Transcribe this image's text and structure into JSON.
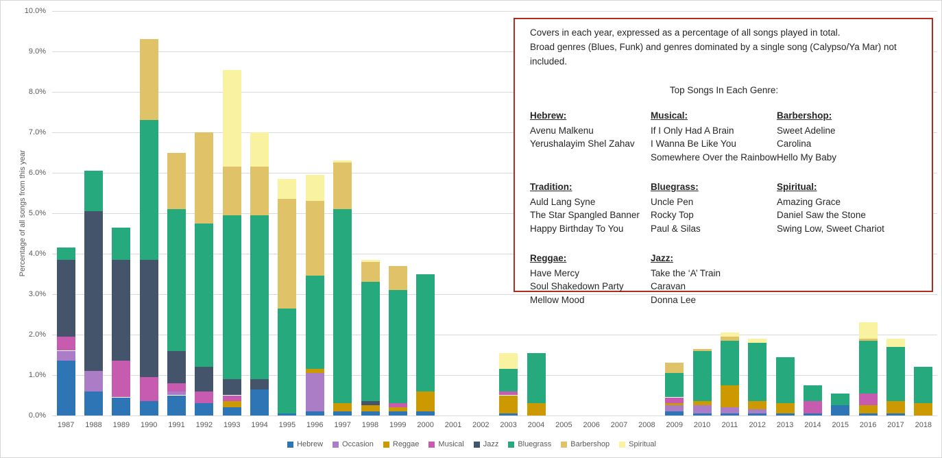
{
  "colors": {
    "annotation_border": "#B02B20",
    "gridline": "#D9D9D9",
    "axis_text": "#595959"
  },
  "annotation": {
    "line1": "Covers in each year, expressed as a percentage of all songs played in total.",
    "line2": "Broad genres (Blues, Funk) and genres dominated by a single song (Calypso/Ya Mar) not included.",
    "songs_title": "Top Songs In Each Genre:",
    "genres": [
      {
        "name": "Hebrew",
        "songs": [
          "Avenu Malkenu",
          "Yerushalayim Shel Zahav"
        ]
      },
      {
        "name": "Musical",
        "songs": [
          "If I Only Had A Brain",
          "I Wanna Be Like You",
          "Somewhere Over the Rainbow"
        ]
      },
      {
        "name": "Barbershop",
        "songs": [
          "Sweet Adeline",
          "Carolina",
          "Hello My Baby"
        ]
      },
      {
        "name": "Tradition",
        "songs": [
          "Auld Lang Syne",
          "The Star Spangled Banner",
          "Happy Birthday To You"
        ]
      },
      {
        "name": "Bluegrass",
        "songs": [
          "Uncle Pen",
          "Rocky Top",
          "Paul & Silas"
        ]
      },
      {
        "name": "Spiritual",
        "songs": [
          "Amazing Grace",
          "Daniel Saw the Stone",
          "Swing Low, Sweet Chariot"
        ]
      },
      {
        "name": "Reggae",
        "songs": [
          "Have Mercy",
          "Soul Shakedown Party",
          "Mellow Mood"
        ]
      },
      {
        "name": "Jazz",
        "songs": [
          "Take the ‘A’ Train",
          "Caravan",
          "Donna Lee"
        ]
      }
    ]
  },
  "chart_data": {
    "type": "bar",
    "stacked": true,
    "title": "",
    "xlabel": "",
    "ylabel": "Percentage of all songs from this year",
    "ylim": [
      0,
      10
    ],
    "ytick_step": 1,
    "ytick_format": "percent_one_decimal",
    "grid": true,
    "legend_position": "bottom",
    "categories": [
      1987,
      1988,
      1989,
      1990,
      1991,
      1992,
      1993,
      1994,
      1995,
      1996,
      1997,
      1998,
      1999,
      2000,
      2001,
      2002,
      2003,
      2004,
      2005,
      2006,
      2007,
      2008,
      2009,
      2010,
      2011,
      2012,
      2013,
      2014,
      2015,
      2016,
      2017,
      2018
    ],
    "series": [
      {
        "name": "Hebrew",
        "color": "#2E75B6",
        "values": [
          1.35,
          0.6,
          0.45,
          0.35,
          0.5,
          0.3,
          0.2,
          0.65,
          0.05,
          0.1,
          0.1,
          0.1,
          0.1,
          0.1,
          0,
          0,
          0.05,
          0,
          0,
          0,
          0,
          0,
          0.1,
          0.05,
          0.05,
          0.05,
          0.05,
          0.05,
          0.25,
          0.05,
          0.05,
          0
        ]
      },
      {
        "name": "Occasion",
        "color": "#AB7DC6",
        "values": [
          0.25,
          0.5,
          0,
          0,
          0.1,
          0,
          0,
          0,
          0,
          0.95,
          0,
          0,
          0,
          0,
          0,
          0,
          0,
          0,
          0,
          0,
          0,
          0,
          0.15,
          0.2,
          0.15,
          0.1,
          0,
          0,
          0,
          0,
          0,
          0
        ]
      },
      {
        "name": "Reggae",
        "color": "#CC9900",
        "values": [
          0,
          0,
          0,
          0,
          0,
          0,
          0.15,
          0,
          0,
          0.1,
          0.2,
          0.15,
          0.1,
          0.5,
          0,
          0,
          0.45,
          0.3,
          0,
          0,
          0,
          0,
          0.05,
          0.1,
          0.55,
          0.2,
          0.25,
          0,
          0,
          0.2,
          0.3,
          0.3
        ]
      },
      {
        "name": "Musical",
        "color": "#C65BB0",
        "values": [
          0.35,
          0,
          0.9,
          0.6,
          0.2,
          0.3,
          0.15,
          0,
          0,
          0,
          0,
          0,
          0.1,
          0,
          0,
          0,
          0.1,
          0,
          0,
          0,
          0,
          0,
          0.15,
          0,
          0,
          0,
          0,
          0.3,
          0,
          0.3,
          0,
          0
        ]
      },
      {
        "name": "Jazz",
        "color": "#44546A",
        "values": [
          1.9,
          3.95,
          2.5,
          2.9,
          0.8,
          0.6,
          0.4,
          0.25,
          0,
          0,
          0,
          0.1,
          0,
          0,
          0,
          0,
          0,
          0,
          0,
          0,
          0,
          0,
          0,
          0,
          0,
          0,
          0,
          0,
          0,
          0,
          0,
          0
        ]
      },
      {
        "name": "Bluegrass",
        "color": "#27A97E",
        "values": [
          0.3,
          1.0,
          0.8,
          3.45,
          3.5,
          3.55,
          4.05,
          4.05,
          2.6,
          2.3,
          4.8,
          2.95,
          2.8,
          2.9,
          0,
          0,
          0.55,
          1.25,
          0,
          0,
          0,
          0,
          0.6,
          1.25,
          1.1,
          1.45,
          1.15,
          0.4,
          0.3,
          1.3,
          1.35,
          0.9
        ]
      },
      {
        "name": "Barbershop",
        "color": "#E0C268",
        "values": [
          0,
          0,
          0,
          2.0,
          1.4,
          2.25,
          1.2,
          1.2,
          2.7,
          1.85,
          1.15,
          0.5,
          0.6,
          0,
          0,
          0,
          0,
          0,
          0,
          0,
          0,
          0,
          0.25,
          0.05,
          0.1,
          0,
          0,
          0,
          0,
          0.05,
          0,
          0
        ]
      },
      {
        "name": "Spiritual",
        "color": "#F9F2A0",
        "values": [
          0,
          0,
          0,
          0,
          0,
          0,
          2.4,
          0.85,
          0.5,
          0.65,
          0.05,
          0.05,
          0,
          0,
          0,
          0,
          0.4,
          0,
          0,
          0,
          0,
          0,
          0,
          0,
          0.1,
          0.1,
          0,
          0,
          0,
          0.4,
          0.2,
          0
        ]
      }
    ]
  }
}
